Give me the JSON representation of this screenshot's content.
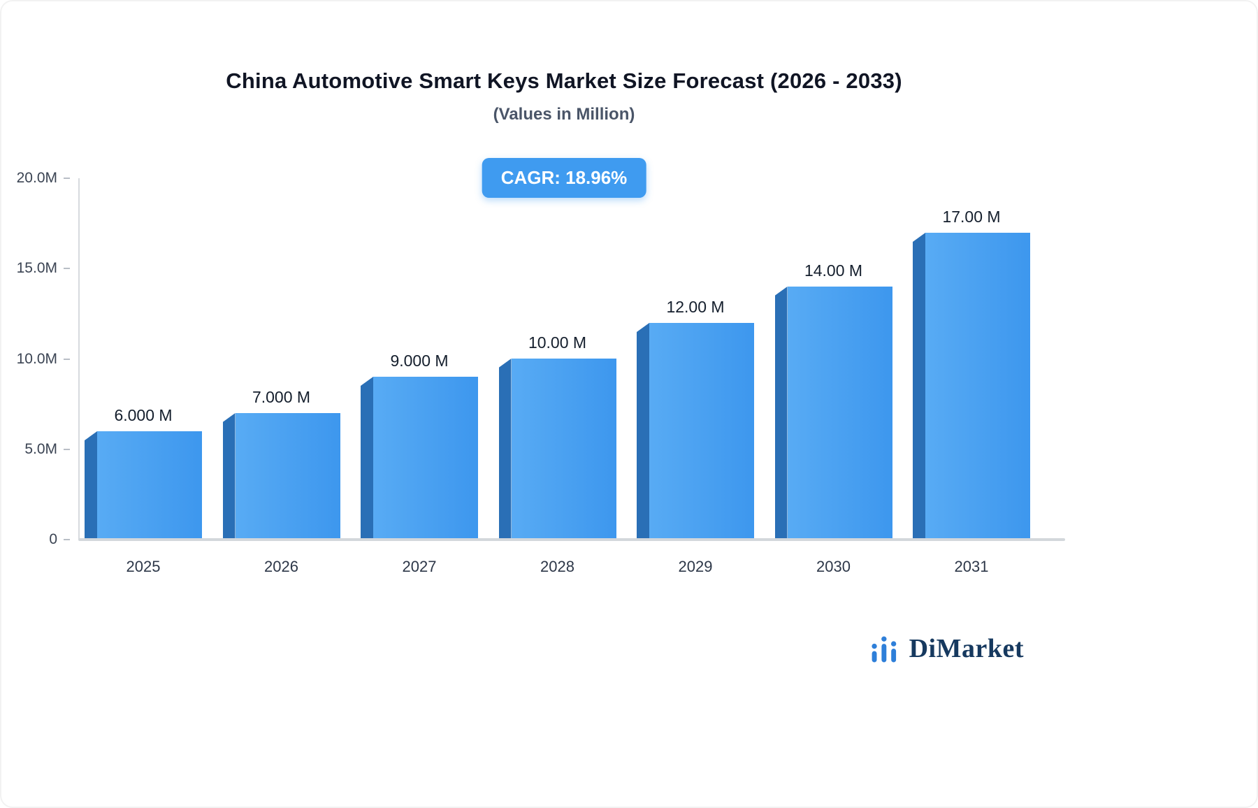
{
  "header": {
    "title": "China Automotive Smart Keys Market Size Forecast (2026 - 2033)",
    "subtitle": "(Values in Million)",
    "badge": "CAGR: 18.96%"
  },
  "logo": {
    "name": "DiMarket"
  },
  "chart_data": {
    "type": "bar",
    "title": "China Automotive Smart Keys Market Size Forecast (2026 - 2033)",
    "subtitle": "(Values in Million)",
    "categories": [
      "2025",
      "2026",
      "2027",
      "2028",
      "2029",
      "2030",
      "2031"
    ],
    "values": [
      6,
      7,
      9,
      10,
      12,
      14,
      17
    ],
    "value_labels": [
      "6.000 M",
      "7.000 M",
      "9.000 M",
      "10.00 M",
      "12.00 M",
      "14.00 M",
      "17.00 M"
    ],
    "y_ticks": [
      "20.0M",
      "15.0M",
      "10.0M",
      "5.0M",
      "0"
    ],
    "ylim": [
      0,
      20
    ],
    "xlabel": "",
    "ylabel": "",
    "grid": false,
    "legend": false,
    "cagr": "18.96%",
    "colors": {
      "bar_face": "#3d97ee",
      "bar_face_light": "#58abf4",
      "bar_side": "#2a6fb6",
      "badge": "#3f9bf0",
      "axis": "#d3d7db",
      "logo_text": "#16395f",
      "logo_icon": "#2e7fd9"
    }
  }
}
